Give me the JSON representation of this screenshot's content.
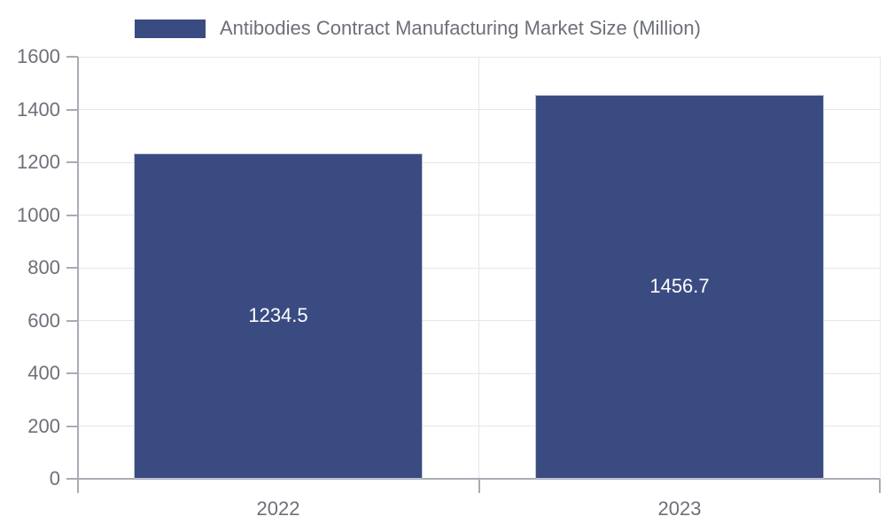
{
  "legend": {
    "label": "Antibodies Contract Manufacturing Market Size (Million)"
  },
  "chart_data": {
    "type": "bar",
    "title": "Antibodies Contract Manufacturing Market Size (Million)",
    "categories": [
      "2022",
      "2023"
    ],
    "series": [
      {
        "name": "Antibodies Contract Manufacturing Market Size (Million)",
        "values": [
          1234.5,
          1456.7
        ]
      }
    ],
    "data_labels": [
      "1234.5",
      "1456.7"
    ],
    "xlabel": "",
    "ylabel": "",
    "ylim": [
      0,
      1600
    ],
    "ytick_step": 200,
    "yticks": [
      0,
      200,
      400,
      600,
      800,
      1000,
      1200,
      1400,
      1600
    ],
    "grid": true,
    "legend_position": "top-left",
    "colors": {
      "bar": "#3a4b82",
      "axis": "#a9acb4",
      "grid": "#e3e6ec",
      "text": "#6e7079",
      "data_label": "#ffffff",
      "background": "#ffffff"
    }
  }
}
